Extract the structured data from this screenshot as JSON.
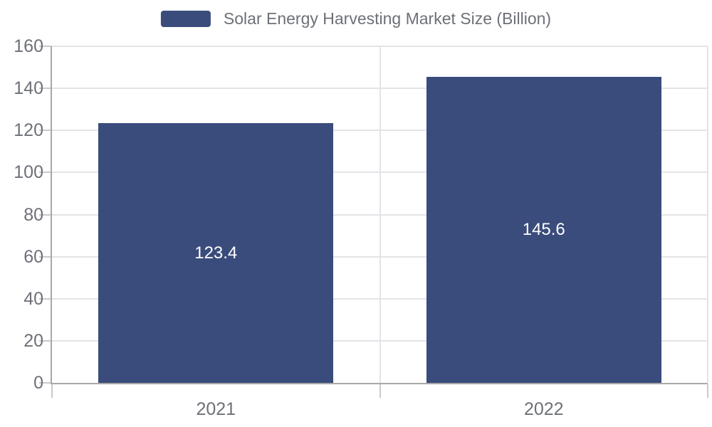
{
  "legend": {
    "label": "Solar Energy Harvesting Market Size (Billion)"
  },
  "colors": {
    "bar": "#3A4C7C",
    "axis_text": "#6E7079",
    "grid": "#E4E4E8",
    "axis_line": "#A8A8A8",
    "tick": "#C9C9CE",
    "value_label": "#FFFFFF",
    "background": "#FFFFFF"
  },
  "chart_data": {
    "type": "bar",
    "title": "Solar Energy Harvesting Market Size (Billion)",
    "categories": [
      "2021",
      "2022"
    ],
    "values": [
      123.4,
      145.6
    ],
    "value_labels": [
      "123.4",
      "145.6"
    ],
    "xlabel": "",
    "ylabel": "",
    "ylim": [
      0,
      160
    ],
    "ytick_step": 20,
    "grid": true,
    "legend_position": "top-center",
    "legend_entries": [
      "Solar Energy Harvesting Market Size (Billion)"
    ]
  }
}
